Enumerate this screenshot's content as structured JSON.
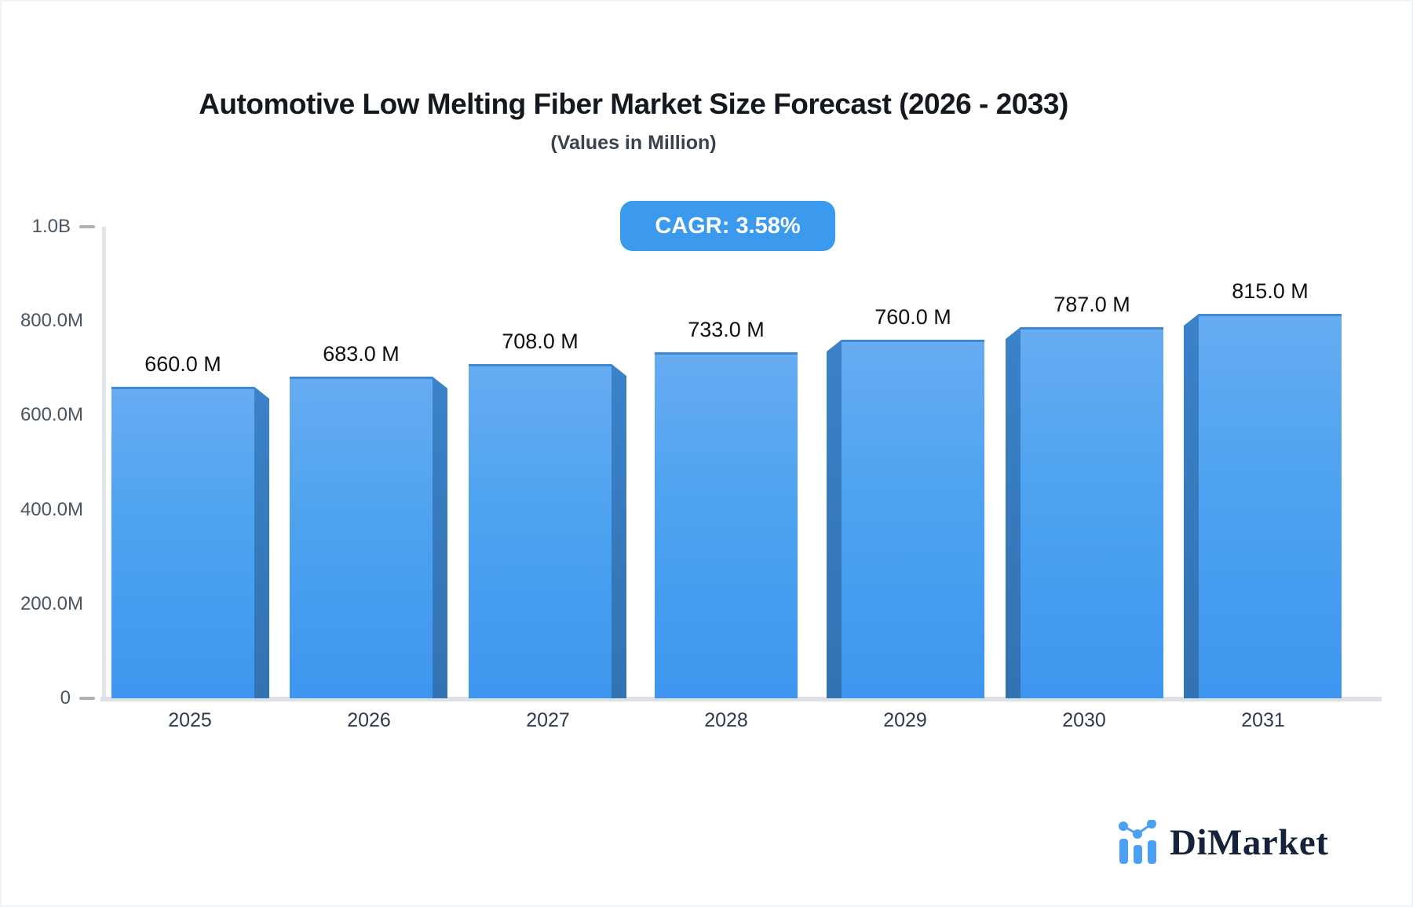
{
  "page": {
    "background": "#f8fafc",
    "canvas_background": "#ffffff"
  },
  "header": {
    "title": "Automotive Low Melting Fiber Market Size Forecast (2026 - 2033)",
    "subtitle": "(Values in Million)"
  },
  "badge": {
    "label": "CAGR: 3.58%",
    "bg_color": "#3b99ee",
    "text_color": "#ffffff"
  },
  "chart_data": {
    "type": "bar",
    "title": "Automotive Low Melting Fiber Market Size Forecast (2026 - 2033)",
    "subtitle": "(Values in Million)",
    "categories": [
      "2025",
      "2026",
      "2027",
      "2028",
      "2029",
      "2030",
      "2031"
    ],
    "values": [
      660,
      683,
      708,
      733,
      760,
      787,
      815
    ],
    "value_labels": [
      "660.0 M",
      "683.0 M",
      "708.0 M",
      "733.0 M",
      "760.0 M",
      "787.0 M",
      "815.0 M"
    ],
    "unit": "Million",
    "cagr": "3.58%",
    "ylim": [
      0,
      1000
    ],
    "y_ticks": [
      {
        "label": "1.0B",
        "value": 1000,
        "dash": true
      },
      {
        "label": "800.0M",
        "value": 800,
        "dash": false
      },
      {
        "label": "600.0M",
        "value": 600,
        "dash": false
      },
      {
        "label": "400.0M",
        "value": 400,
        "dash": false
      },
      {
        "label": "200.0M",
        "value": 200,
        "dash": false
      },
      {
        "label": "0",
        "value": 0,
        "dash": true
      }
    ],
    "grid": false,
    "legend": false,
    "style": "3d-perspective-bars",
    "colors": {
      "bar_face_top": "#66acf2",
      "bar_face_bottom": "#3e96ef",
      "bar_top_edge": "#3e87d4",
      "bar_side": "#3478ba",
      "axis_line": "#e0e4e8",
      "tick_text": "#4a5561",
      "category_text": "#2e3a4d",
      "value_text": "#0d0f12",
      "badge_bg": "#3b99ee"
    }
  },
  "logo": {
    "text": "DiMarket",
    "icon": "mini-bar-chart-logo-icon",
    "icon_color": "#4aa0f5",
    "text_color": "#16213b"
  }
}
